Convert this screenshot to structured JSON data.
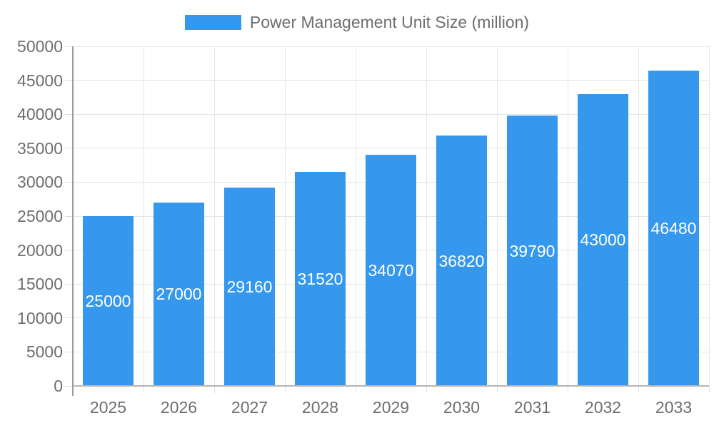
{
  "chart_data": {
    "type": "bar",
    "title": "",
    "xlabel": "",
    "ylabel": "",
    "categories": [
      "2025",
      "2026",
      "2027",
      "2028",
      "2029",
      "2030",
      "2031",
      "2032",
      "2033"
    ],
    "series": [
      {
        "name": "Power Management Unit Size (million)",
        "color": "#3598ec",
        "values": [
          25000,
          27000,
          29160,
          31520,
          34070,
          36820,
          39790,
          43000,
          46480
        ]
      }
    ],
    "ylim": [
      0,
      50000
    ],
    "ytick_step": 5000,
    "ytick_labels": [
      "0",
      "5000",
      "10000",
      "15000",
      "20000",
      "25000",
      "30000",
      "35000",
      "40000",
      "45000",
      "50000"
    ],
    "grid": "on",
    "legend_position": "top",
    "value_labels": {
      "position": "center-of-bar",
      "color": "#ffffff"
    },
    "axis_text_color": "#6e6e6e",
    "background_color": "#ffffff"
  }
}
